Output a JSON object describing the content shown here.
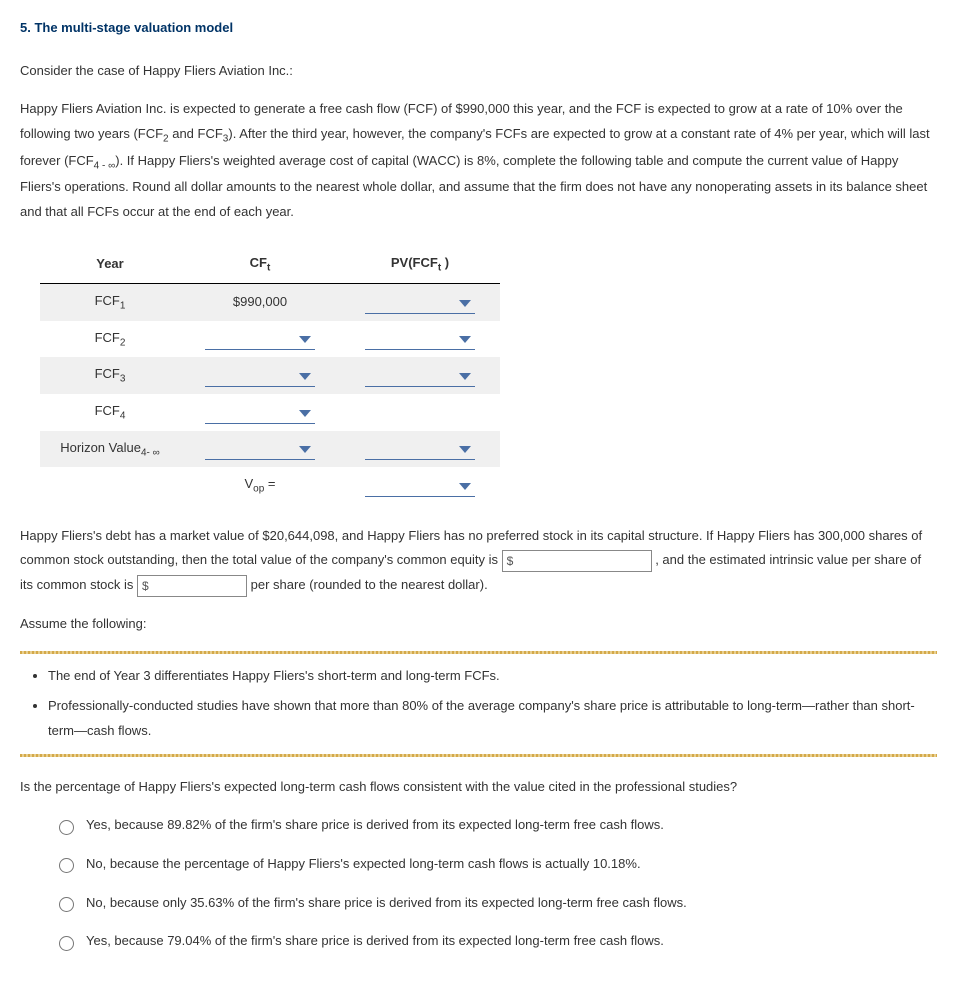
{
  "heading": "5. The multi-stage valuation model",
  "intro": "Consider the case of Happy Fliers Aviation Inc.:",
  "body": "Happy Fliers Aviation Inc. is expected to generate a free cash flow (FCF) of $990,000 this year, and the FCF is expected to grow at a rate of 10% over the following two years (FCF",
  "body_sub1": "2",
  "body_mid1": " and FCF",
  "body_sub2": "3",
  "body_mid2": "). After the third year, however, the company's FCFs are expected to grow at a constant rate of 4% per year, which will last forever (FCF",
  "body_sub3": "4 - ∞",
  "body_end": "). If Happy Fliers's weighted average cost of capital (WACC) is 8%, complete the following table and compute the current value of Happy Fliers's operations. Round all dollar amounts to the nearest whole dollar, and assume that the firm does not have any nonoperating assets in its balance sheet and that all FCFs occur at the end of each year.",
  "table": {
    "h_year": "Year",
    "h_cf": "CF",
    "h_cf_sub": "t",
    "h_pv": "PV(FCF",
    "h_pv_sub": "t",
    "h_pv_end": " )",
    "r1": "FCF",
    "r1_sub": "1",
    "r1_cf": "$990,000",
    "r2": "FCF",
    "r2_sub": "2",
    "r3": "FCF",
    "r3_sub": "3",
    "r4": "FCF",
    "r4_sub": "4",
    "r5": "Horizon Value",
    "r5_sub": "4- ∞",
    "vop_label": "V",
    "vop_sub": "op",
    "vop_eq": " ="
  },
  "equity": {
    "p1": "Happy Fliers's debt has a market value of $20,644,098, and Happy Fliers has no preferred stock in its capital structure. If Happy Fliers has 300,000 shares of common stock outstanding, then the total value of the company's common equity is ",
    "box_prefix": "$",
    "p2": " , and the estimated intrinsic value per share of its common stock is  ",
    "p3": "  per share (rounded to the nearest dollar)."
  },
  "assume_label": "Assume the following:",
  "bullets": {
    "b1": "The end of Year 3 differentiates Happy Fliers's short-term and long-term FCFs.",
    "b2": "Professionally-conducted studies have shown that more than 80% of the average company's share price is attributable to long-term—rather than short-term—cash flows."
  },
  "question": "Is the percentage of Happy Fliers's expected long-term cash flows consistent with the value cited in the professional studies?",
  "options": {
    "o1": "Yes, because 89.82% of the firm's share price is derived from its expected long-term free cash flows.",
    "o2": "No, because the percentage of Happy Fliers's expected long-term cash flows is actually 10.18%.",
    "o3": "No, because only 35.63% of the firm's share price is derived from its expected long-term free cash flows.",
    "o4": "Yes, because 79.04% of the firm's share price is derived from its expected long-term free cash flows."
  }
}
